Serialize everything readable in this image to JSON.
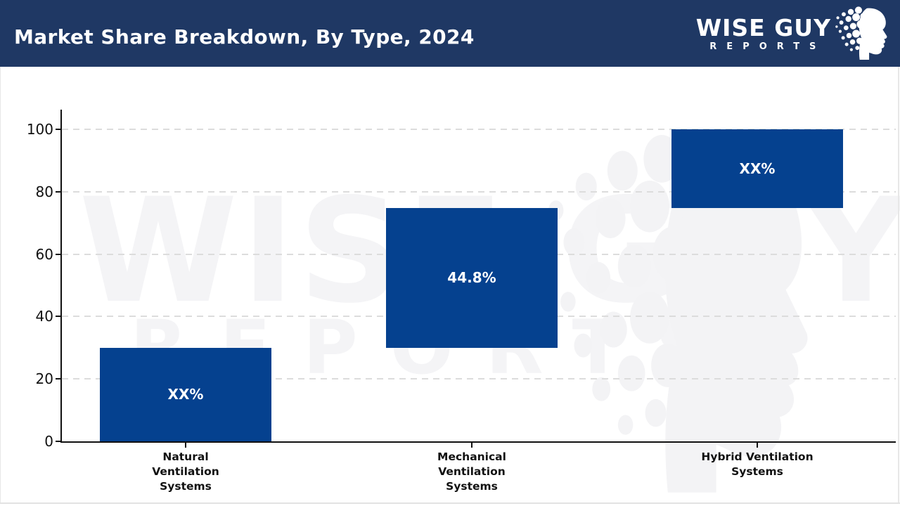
{
  "header": {
    "title": "Market Share Breakdown, By Type, 2024",
    "logo": {
      "wordmark": "WISE GUY",
      "subtitle": "REPORTS"
    }
  },
  "watermark": {
    "wordmark": "WISE GUY",
    "subtitle": "REPORTS"
  },
  "colors": {
    "header_bg": "#1f3864",
    "bar_blue": "#05418f",
    "grid_gray": "#dcdcdc",
    "axis_black": "#111111",
    "watermark_gray": "#f4f4f6",
    "bar_label_white": "#ffffff"
  },
  "chart_data": {
    "type": "bar",
    "subtype": "floating-waterfall-bars",
    "title": "Market Share Breakdown, By Type, 2024",
    "xlabel": "",
    "ylabel": "",
    "categories": [
      [
        "Natural",
        "Ventilation",
        "Systems"
      ],
      [
        "Mechanical",
        "Ventilation",
        "Systems"
      ],
      [
        "Hybrid Ventilation",
        "Systems"
      ]
    ],
    "segments": [
      {
        "category": "Natural Ventilation Systems",
        "start": 0,
        "end": 30,
        "label": "XX%"
      },
      {
        "category": "Mechanical Ventilation Systems",
        "start": 30,
        "end": 74.8,
        "label": "44.8%"
      },
      {
        "category": "Hybrid Ventilation Systems",
        "start": 74.8,
        "end": 100,
        "label": "XX%"
      }
    ],
    "yticks": [
      0,
      20,
      40,
      60,
      80,
      100
    ],
    "ylim": [
      0,
      105
    ],
    "grid": "horizontal-dashed",
    "legend": "none",
    "bar_color": "#05418f"
  }
}
